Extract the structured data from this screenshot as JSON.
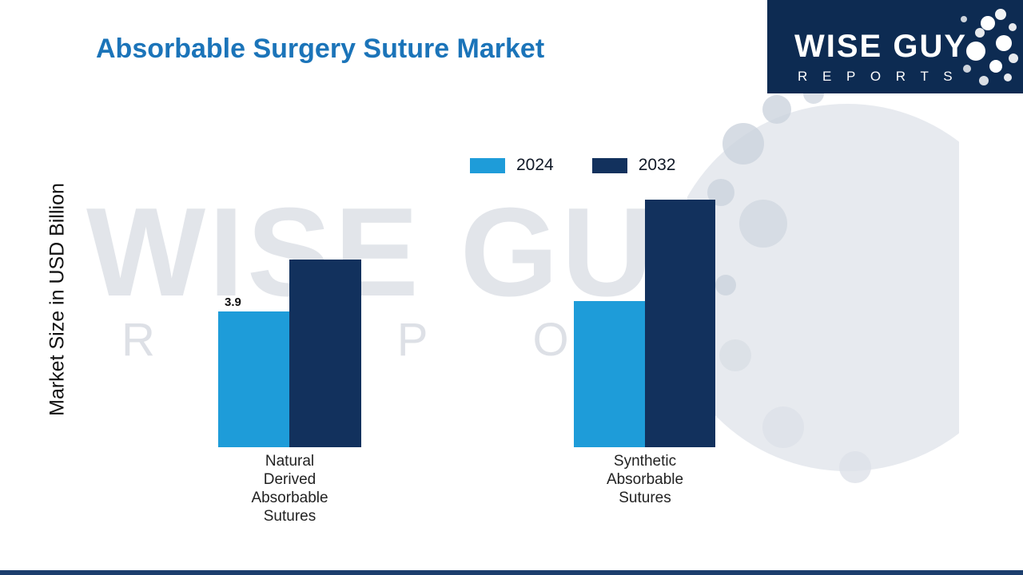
{
  "title": "Absorbable Surgery Suture Market",
  "logo": {
    "line1": "WISE GUY",
    "line2": "R E P O R T S"
  },
  "watermark": {
    "line1": "WISE GUY",
    "line2": "R E P O R T"
  },
  "colors": {
    "title_blue": "#1b74b9",
    "series_2024": "#1e9cd9",
    "series_2032": "#12315d",
    "logo_background": "#0d2b52",
    "footer_strip": "#1c3e6d"
  },
  "chart_data": {
    "type": "bar",
    "title": "Absorbable Surgery Suture Market",
    "ylabel": "Market Size in USD Billion",
    "xlabel": "",
    "categories": [
      "Natural\nDerived\nAbsorbable\nSutures",
      "Synthetic\nAbsorbable\nSutures"
    ],
    "series": [
      {
        "name": "2024",
        "color": "#1e9cd9",
        "values": [
          3.9,
          4.2
        ],
        "labels": [
          "3.9",
          ""
        ]
      },
      {
        "name": "2032",
        "color": "#12315d",
        "values": [
          5.4,
          7.1
        ],
        "labels": [
          "",
          ""
        ]
      }
    ],
    "ylim": [
      0,
      8
    ],
    "grid": false,
    "legend_position": "top"
  }
}
